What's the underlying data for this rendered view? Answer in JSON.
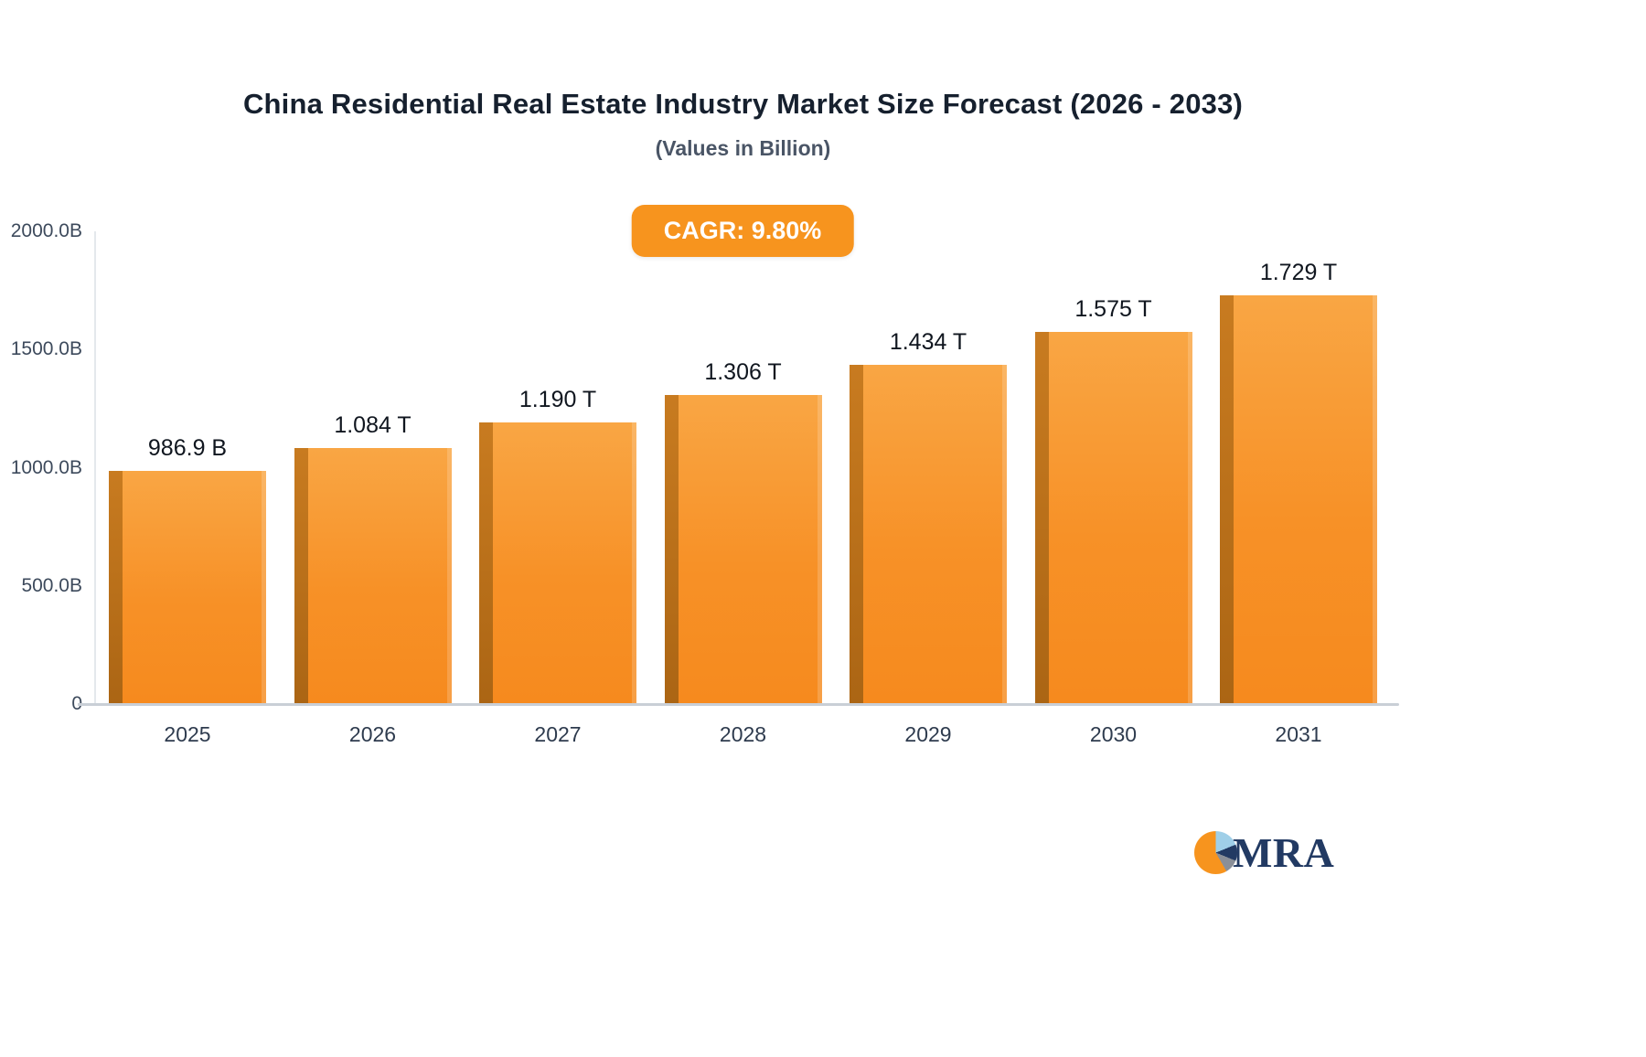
{
  "title": "China Residential Real Estate Industry Market Size Forecast (2026 - 2033)",
  "subtitle": "(Values in Billion)",
  "badge": {
    "label": "CAGR: 9.80%"
  },
  "chart_data": {
    "type": "bar",
    "title": "China Residential Real Estate Industry Market Size Forecast (2026 - 2033)",
    "subtitle": "(Values in Billion)",
    "categories": [
      "2025",
      "2026",
      "2027",
      "2028",
      "2029",
      "2030",
      "2031"
    ],
    "values": [
      986.9,
      1084,
      1190,
      1306,
      1434,
      1575,
      1729
    ],
    "value_labels": [
      "986.9 B",
      "1.084 T",
      "1.190 T",
      "1.306 T",
      "1.434 T",
      "1.575 T",
      "1.729 T"
    ],
    "unit": "Billion",
    "cagr": "9.80%",
    "xlabel": "",
    "ylabel": "",
    "ylim": [
      0,
      2000
    ],
    "yticks": [
      "2000.0B",
      "1500.0B",
      "1000.0B",
      "500.0B",
      "0"
    ],
    "grid": false,
    "legend": "none"
  },
  "colors": {
    "accent": "#f7941e",
    "bar_top": "#f9a644",
    "bar_bottom": "#f68a1e",
    "bar_side": "#ab6514",
    "title": "#16202e",
    "logo_navy": "#223a63",
    "logo_blue": "#9fcfe8",
    "logo_gray": "#8a8f98"
  },
  "logo": {
    "text": "MRA"
  }
}
